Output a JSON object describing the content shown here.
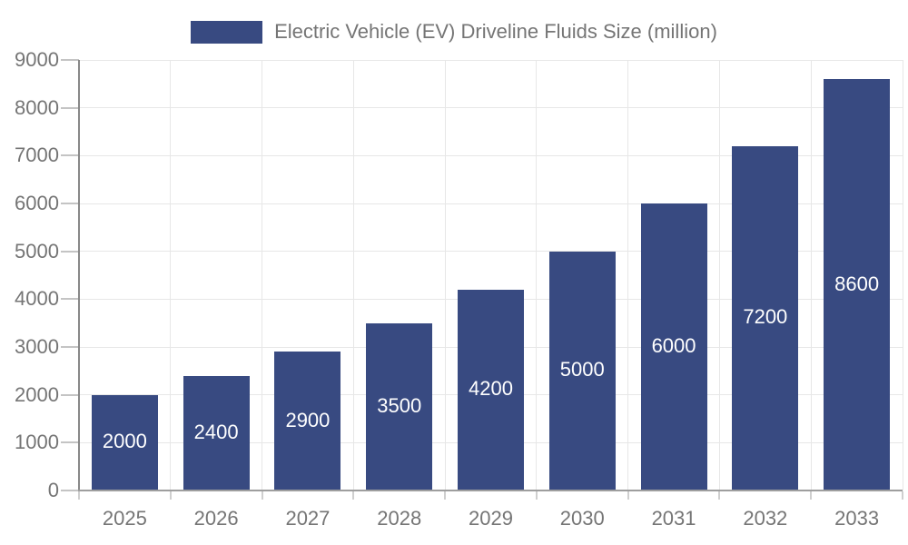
{
  "chart_data": {
    "type": "bar",
    "title": "Electric Vehicle (EV) Driveline Fluids Size (million)",
    "legend": [
      "Electric Vehicle (EV) Driveline Fluids Size (million)"
    ],
    "legend_position": "top-center",
    "categories": [
      "2025",
      "2026",
      "2027",
      "2028",
      "2029",
      "2030",
      "2031",
      "2032",
      "2033"
    ],
    "values": [
      2000,
      2400,
      2900,
      3500,
      4200,
      5000,
      6000,
      7200,
      8600
    ],
    "bar_labels": [
      "2000",
      "2400",
      "2900",
      "3500",
      "4200",
      "5000",
      "6000",
      "7200",
      "8600"
    ],
    "xlabel": "",
    "ylabel": "",
    "ylim": [
      0,
      9000
    ],
    "yticks": [
      0,
      1000,
      2000,
      3000,
      4000,
      5000,
      6000,
      7000,
      8000,
      9000
    ],
    "grid": true,
    "colors": {
      "bar_fill": "#384a81",
      "bar_value_text": "#ffffff",
      "grid_line": "#e7e7e7",
      "y_axis_line": "#888888",
      "x_axis_line": "#9e9e9e",
      "y_tick_mark": "#c4c4c4",
      "x_tick_mark": "#cfcfcf",
      "tick_label_text": "#757575",
      "legend_text": "#757575",
      "background": "#ffffff"
    }
  }
}
